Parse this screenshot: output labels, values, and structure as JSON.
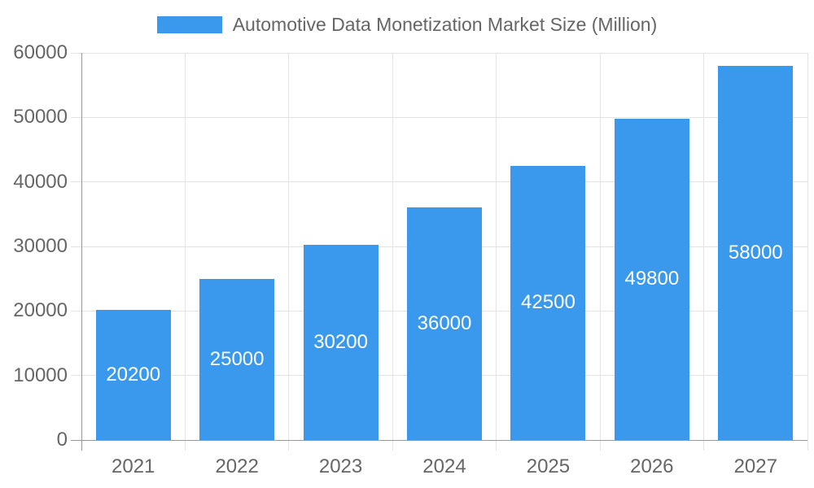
{
  "chart_data": {
    "type": "bar",
    "title": "Automotive Data Monetization Market Size (Million)",
    "categories": [
      "2021",
      "2022",
      "2023",
      "2024",
      "2025",
      "2026",
      "2027"
    ],
    "values": [
      20200,
      25000,
      30200,
      36000,
      42500,
      49800,
      58000
    ],
    "xlabel": "",
    "ylabel": "",
    "ylim": [
      0,
      60000
    ],
    "yticks": [
      0,
      10000,
      20000,
      30000,
      40000,
      50000,
      60000
    ],
    "grid": true,
    "legend_position": "top-center",
    "bar_color": "#3A99EC",
    "value_label_color": "#FFFFFF",
    "tick_label_color": "#666666",
    "axis_line_color": "#999999",
    "gridline_color": "#E3E3E3",
    "background_color": "#FFFFFF"
  }
}
